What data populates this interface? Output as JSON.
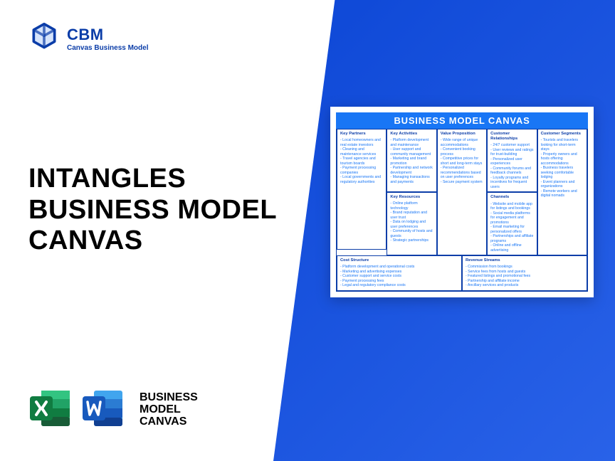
{
  "logo": {
    "brand": "CBM",
    "tagline": "Canvas Business Model"
  },
  "title": {
    "line1": "INTANGLES",
    "line2": "BUSINESS MODEL",
    "line3": "CANVAS"
  },
  "fileLabel": {
    "l1": "BUSINESS",
    "l2": "MODEL",
    "l3": "CANVAS"
  },
  "canvas": {
    "header": "BUSINESS MODEL CANVAS",
    "keyPartners": {
      "h": "Key Partners",
      "items": [
        "Local homeowners and real estate investors",
        "Cleaning and maintenance services",
        "Travel agencies and tourism boards",
        "Payment processing companies",
        "Local governments and regulatory authorities"
      ]
    },
    "keyActivities": {
      "h": "Key Activities",
      "items": [
        "Platform development and maintenance",
        "User support and community management",
        "Marketing and brand promotion",
        "Partnership and network development",
        "Managing transactions and payments"
      ]
    },
    "keyResources": {
      "h": "Key Resources",
      "items": [
        "Online platform technology",
        "Brand reputation and user trust",
        "Data on lodging and user preferences",
        "Community of hosts and guests",
        "Strategic partnerships"
      ]
    },
    "valueProp": {
      "h": "Value Proposition",
      "items": [
        "Wide range of unique accommodations",
        "Convenient booking process",
        "Competitive prices for short and long-term stays",
        "Personalized recommendations based on user preferences",
        "Secure payment system"
      ]
    },
    "custRel": {
      "h": "Customer Relationships",
      "items": [
        "24/7 customer support",
        "User reviews and ratings for trust-building",
        "Personalized user experiences",
        "Community forums and feedback channels",
        "Loyalty programs and incentives for frequent users"
      ]
    },
    "channels": {
      "h": "Channels",
      "items": [
        "Website and mobile app for listings and bookings",
        "Social media platforms for engagement and promotions",
        "Email marketing for personalized offers",
        "Partnerships and affiliate programs",
        "Online and offline advertising"
      ]
    },
    "custSeg": {
      "h": "Customer Segments",
      "items": [
        "Tourists and travelers looking for short-term stays",
        "Property owners and hosts offering accommodations",
        "Business travelers seeking comfortable lodging",
        "Event planners and organizations",
        "Remote workers and digital nomads"
      ]
    },
    "costStruct": {
      "h": "Cost Structure",
      "items": [
        "Platform development and operational costs",
        "Marketing and advertising expenses",
        "Customer support and service costs",
        "Payment processing fees",
        "Legal and regulatory compliance costs"
      ]
    },
    "revenue": {
      "h": "Revenue Streams",
      "items": [
        "Commission from bookings",
        "Service fees from hosts and guests",
        "Featured listings and promotional fees",
        "Partnership and affiliate income",
        "Ancillary services and products"
      ]
    }
  },
  "colors": {
    "brandBlue": "#0b3da8",
    "accentBlue": "#1976f5",
    "excel": "#107c41",
    "word": "#185abd"
  }
}
